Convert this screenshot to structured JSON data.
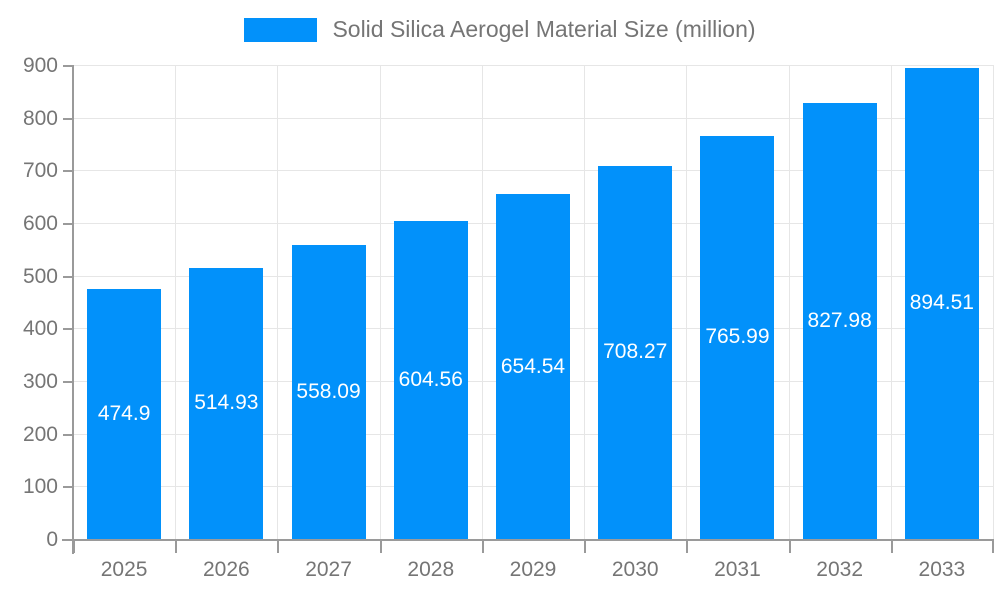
{
  "legend": {
    "series_label": "Solid Silica Aerogel Material Size (million)"
  },
  "chart_data": {
    "type": "bar",
    "title": "Solid Silica Aerogel Material Size (million)",
    "categories": [
      "2025",
      "2026",
      "2027",
      "2028",
      "2029",
      "2030",
      "2031",
      "2032",
      "2033"
    ],
    "values": [
      474.9,
      514.93,
      558.09,
      604.56,
      654.54,
      708.27,
      765.99,
      827.98,
      894.51
    ],
    "value_labels": [
      "474.9",
      "514.93",
      "558.09",
      "604.56",
      "654.54",
      "708.27",
      "765.99",
      "827.98",
      "894.51"
    ],
    "xlabel": "",
    "ylabel": "",
    "ylim": [
      0,
      900
    ],
    "ytick_step": 100,
    "ytick_labels": [
      "0",
      "100",
      "200",
      "300",
      "400",
      "500",
      "600",
      "700",
      "800",
      "900"
    ],
    "grid": true,
    "legend_position": "top",
    "bar_label_position": "center",
    "colors": {
      "bar": "#0291FA",
      "grid": "#E6E6E6",
      "axis": "#9A9A9A",
      "tick_text": "#757575",
      "legend_text": "#757575",
      "bar_label": "#FFFFFF",
      "background": "#FFFFFF"
    }
  }
}
